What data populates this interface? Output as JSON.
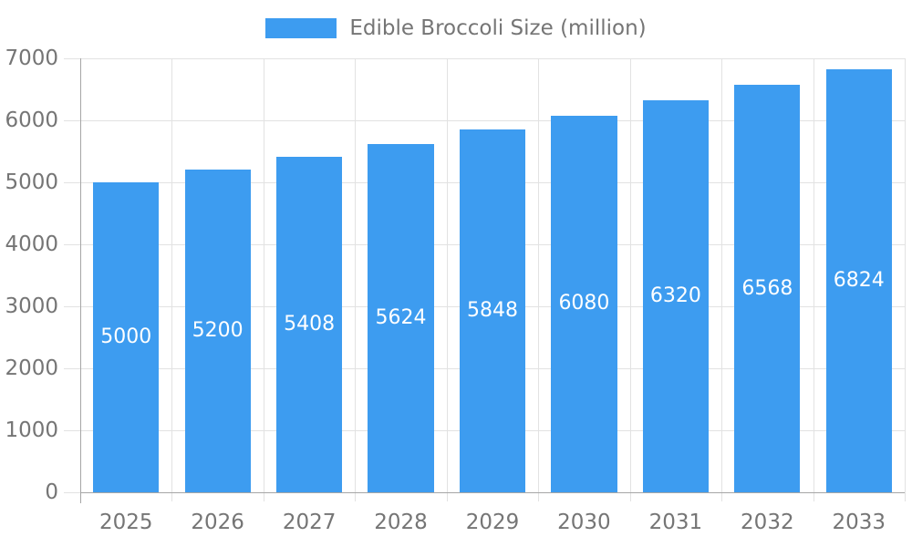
{
  "chart_data": {
    "type": "bar",
    "title": "Edible Broccoli Size (million)",
    "categories": [
      "2025",
      "2026",
      "2027",
      "2028",
      "2029",
      "2030",
      "2031",
      "2032",
      "2033"
    ],
    "values": [
      5000,
      5200,
      5408,
      5624,
      5848,
      6080,
      6320,
      6568,
      6824
    ],
    "xlabel": "",
    "ylabel": "",
    "ylim": [
      0,
      7000
    ],
    "y_tick_step": 1000,
    "y_ticks": [
      0,
      1000,
      2000,
      3000,
      4000,
      5000,
      6000,
      7000
    ],
    "grid": true,
    "value_labels": "centered-inside-bars",
    "legend": {
      "position": "top-center",
      "label": "Edible Broccoli Size (million)"
    },
    "colors": {
      "bar": "#3D9CF0",
      "grid": "#E2E2E2",
      "axis": "#A6A6A6",
      "label": "#757575",
      "value_label": "#FFFFFF",
      "background": "#FFFFFF"
    }
  }
}
